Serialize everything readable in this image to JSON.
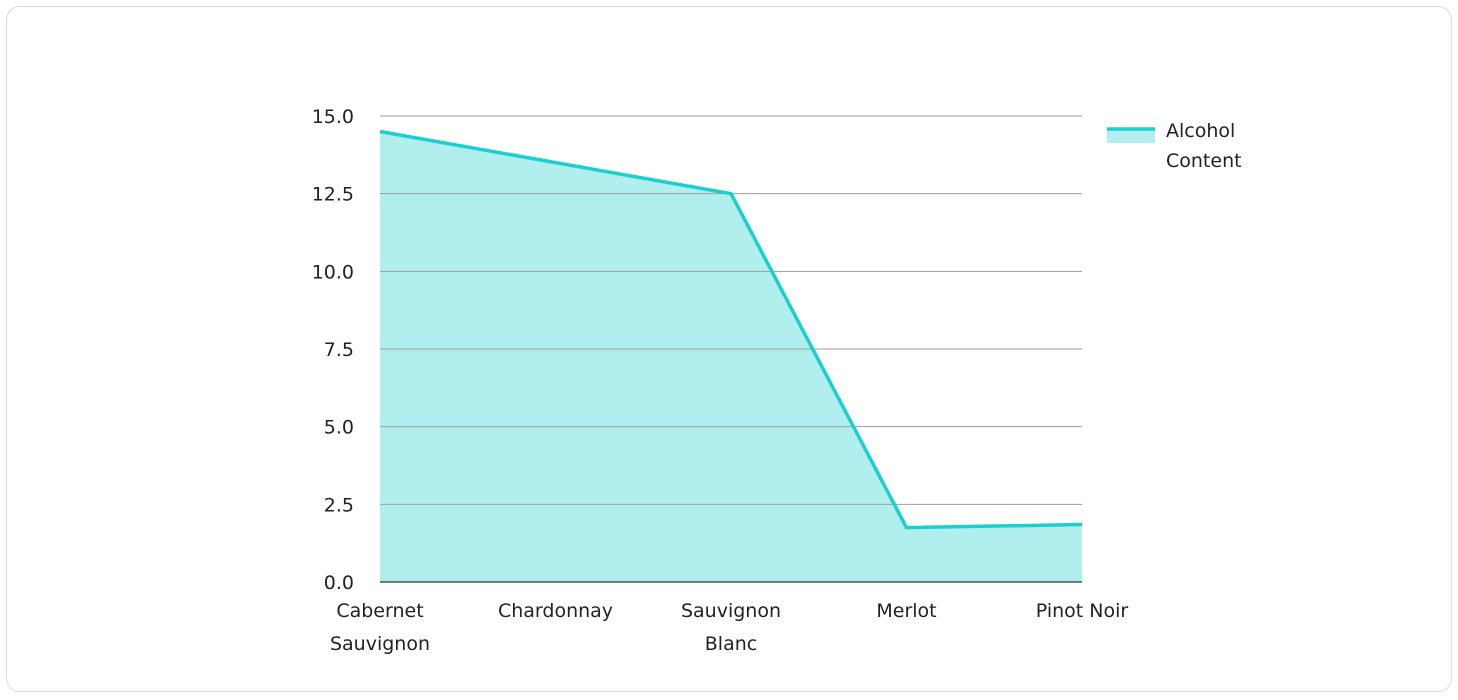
{
  "chart_data": {
    "type": "area",
    "categories": [
      [
        "Cabernet",
        "Sauvignon"
      ],
      [
        "Chardonnay"
      ],
      [
        "Sauvignon",
        "Blanc"
      ],
      [
        "Merlot"
      ],
      [
        "Pinot Noir"
      ]
    ],
    "series": [
      {
        "name": "Alcohol Content",
        "values": [
          14.5,
          null,
          12.5,
          1.75,
          1.85
        ],
        "line_color": "#1ccfcf",
        "fill_color": "#b0efee"
      }
    ],
    "legend_lines": [
      "Alcohol",
      "Content"
    ],
    "y_ticks": [
      "0.0",
      "2.5",
      "5.0",
      "7.5",
      "10.0",
      "12.5",
      "15.0"
    ],
    "ylim": [
      0,
      15
    ],
    "grid": true,
    "legend_position": "top-right",
    "title": "",
    "xlabel": "",
    "ylabel": ""
  }
}
